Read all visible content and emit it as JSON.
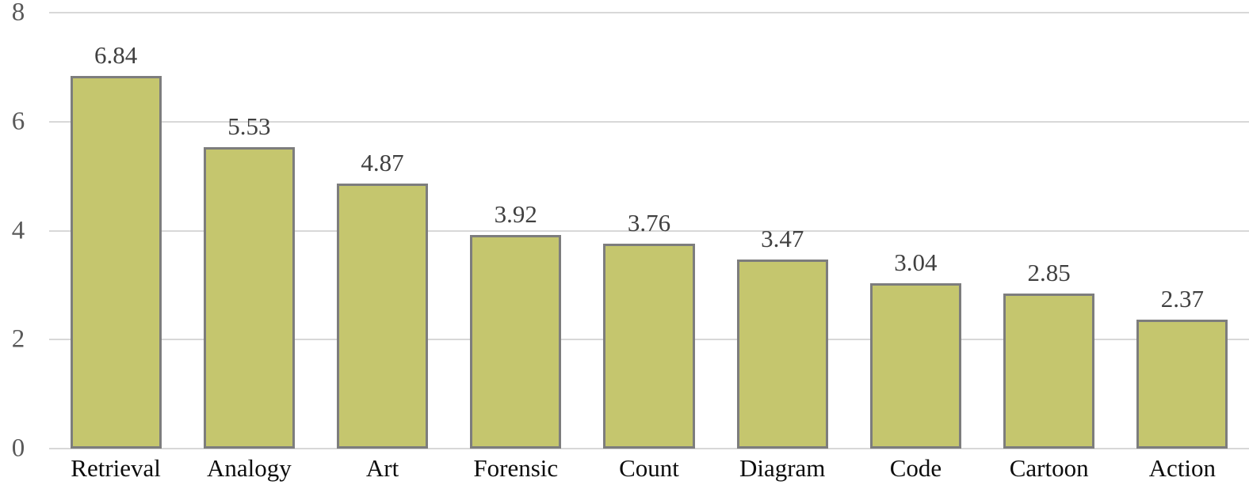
{
  "chart_data": {
    "type": "bar",
    "categories": [
      "Retrieval",
      "Analogy",
      "Art",
      "Forensic",
      "Count",
      "Diagram",
      "Code",
      "Cartoon",
      "Action"
    ],
    "values": [
      6.84,
      5.53,
      4.87,
      3.92,
      3.76,
      3.47,
      3.04,
      2.85,
      2.37
    ],
    "data_labels": [
      "6.84",
      "5.53",
      "4.87",
      "3.92",
      "3.76",
      "3.47",
      "3.04",
      "2.85",
      "2.37"
    ],
    "title": "",
    "xlabel": "",
    "ylabel": "",
    "ylim": [
      0,
      8
    ],
    "yticks": [
      0,
      2,
      4,
      6,
      8
    ],
    "grid": true,
    "legend": false,
    "legend_position": "none",
    "colors": {
      "bar_fill": "#c5c66e",
      "bar_border": "#7d7d7d",
      "gridline": "#d8d8d8",
      "ytick_text": "#595959",
      "value_label_text": "#404040",
      "xtick_text": "#0d0d0d",
      "background": "#ffffff"
    }
  }
}
